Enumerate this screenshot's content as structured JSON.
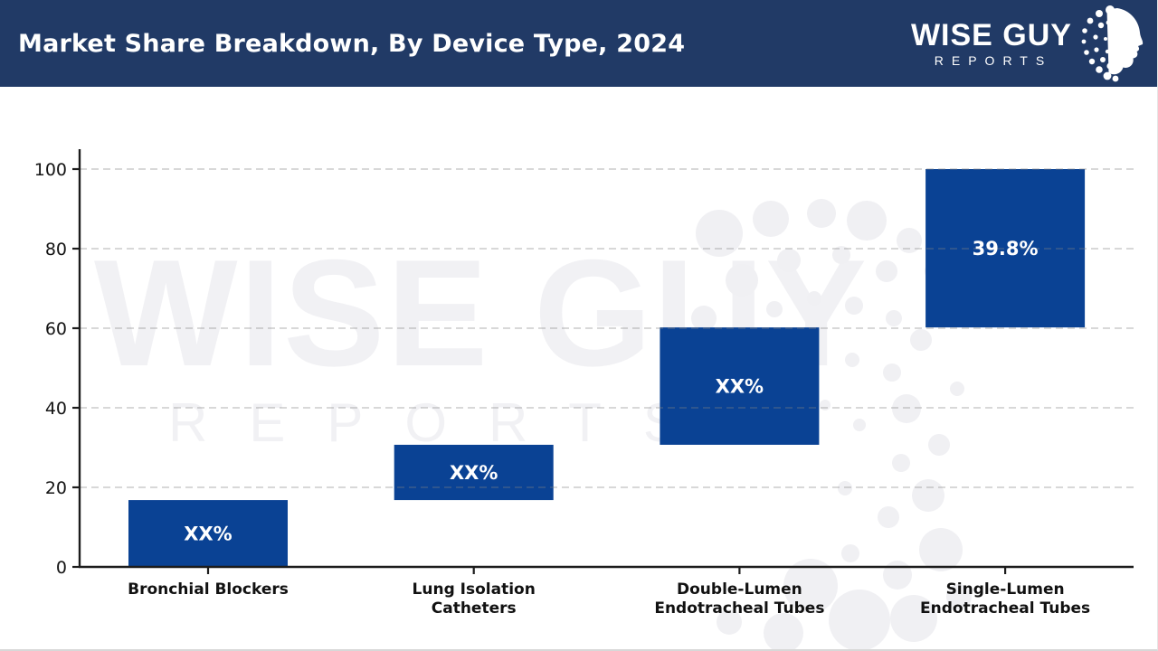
{
  "header": {
    "title": "Market Share Breakdown, By Device Type, 2024",
    "background_color": "#213a66",
    "logo": {
      "line1": "WISE GUY",
      "line2": "REPORTS"
    }
  },
  "watermark": {
    "line1": "WISE GUY",
    "line2": "REPORTS"
  },
  "chart_data": {
    "type": "bar",
    "subtype": "waterfall",
    "title": "Market Share Breakdown, By Device Type, 2024",
    "xlabel": "",
    "ylabel": "",
    "ylim": [
      0,
      105
    ],
    "yticks": [
      0,
      20,
      40,
      60,
      80,
      100
    ],
    "grid": true,
    "grid_style": "dashed",
    "legend": "none",
    "bar_color": "#0a4294",
    "label_color": "#ffffff",
    "categories": [
      "Bronchial Blockers",
      "Lung Isolation Catheters",
      "Double-Lumen Endotracheal Tubes",
      "Single-Lumen Endotracheal Tubes"
    ],
    "category_label_lines": [
      [
        "Bronchial Blockers"
      ],
      [
        "Lung Isolation",
        "Catheters"
      ],
      [
        "Double-Lumen",
        "Endotracheal Tubes"
      ],
      [
        "Single-Lumen",
        "Endotracheal Tubes"
      ]
    ],
    "segments": [
      {
        "category": "Bronchial Blockers",
        "start": 0,
        "end": 16.8,
        "value": 16.8,
        "label": "XX%"
      },
      {
        "category": "Lung Isolation Catheters",
        "start": 16.8,
        "end": 30.7,
        "value": 13.9,
        "label": "XX%"
      },
      {
        "category": "Double-Lumen Endotracheal Tubes",
        "start": 30.7,
        "end": 60.2,
        "value": 29.5,
        "label": "XX%"
      },
      {
        "category": "Single-Lumen Endotracheal Tubes",
        "start": 60.2,
        "end": 100,
        "value": 39.8,
        "label": "39.8%"
      }
    ]
  }
}
